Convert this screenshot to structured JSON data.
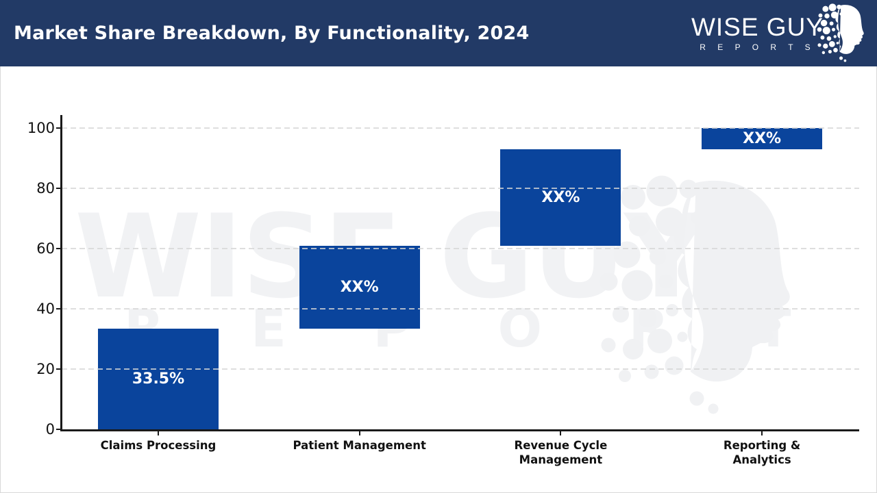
{
  "header": {
    "title": "Market Share Breakdown, By Functionality, 2024",
    "logo": {
      "name_line": "WISE GUY",
      "sub_line": "R E P O R T S"
    }
  },
  "watermark": {
    "name_line": "WISE GUY",
    "sub_line": "R E P O R T S"
  },
  "chart_data": {
    "type": "bar",
    "subtype": "waterfall",
    "title": "Market Share Breakdown, By Functionality, 2024",
    "categories": [
      [
        "Claims Processing"
      ],
      [
        "Patient Management"
      ],
      [
        "Revenue Cycle",
        "Management"
      ],
      [
        "Reporting &",
        "Analytics"
      ]
    ],
    "series": [
      {
        "name": "Market share (%)",
        "segments": [
          {
            "category": "Claims Processing",
            "start": 0,
            "end": 33.5,
            "label": "33.5%"
          },
          {
            "category": "Patient Management",
            "start": 33.5,
            "end": 61,
            "label": "XX%"
          },
          {
            "category": "Revenue Cycle Management",
            "start": 61,
            "end": 93,
            "label": "XX%"
          },
          {
            "category": "Reporting & Analytics",
            "start": 93,
            "end": 100,
            "label": "XX%"
          }
        ]
      }
    ],
    "ylim": [
      0,
      100
    ],
    "yticks": [
      0,
      20,
      40,
      60,
      80,
      100
    ],
    "xlabel": "",
    "ylabel": "",
    "grid": "horizontal-dashed",
    "legend": "none",
    "colors": {
      "bar": "#0a449c",
      "bar_label": "#ffffff",
      "header_bg": "#223a66",
      "axis": "#1a1a1a",
      "grid": "#d6d6d6",
      "watermark": "#f1f2f4"
    }
  }
}
